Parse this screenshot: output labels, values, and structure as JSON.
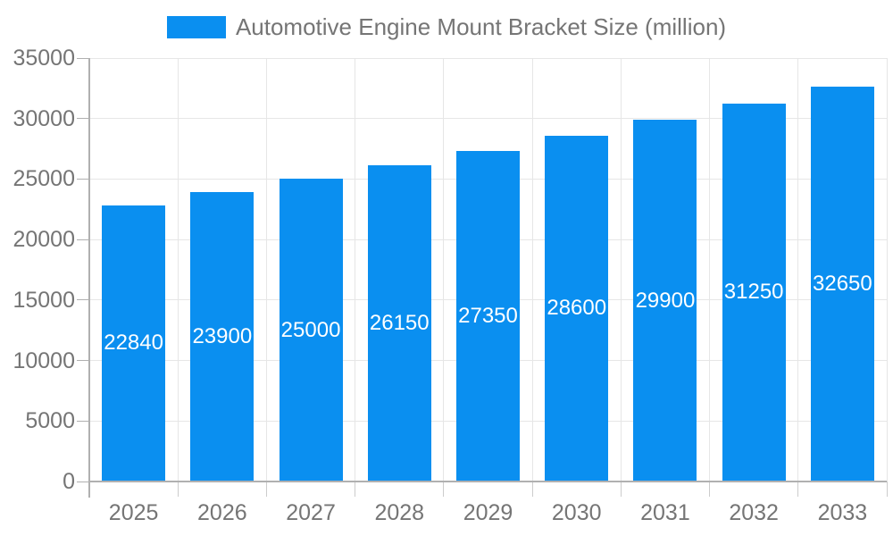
{
  "chart_data": {
    "type": "bar",
    "title": "Automotive Engine Mount Bracket Size (million)",
    "categories": [
      "2025",
      "2026",
      "2027",
      "2028",
      "2029",
      "2030",
      "2031",
      "2032",
      "2033"
    ],
    "values": [
      22840,
      23900,
      25000,
      26150,
      27350,
      28600,
      29900,
      31250,
      32650
    ],
    "xlabel": "",
    "ylabel": "",
    "ylim": [
      0,
      35000
    ],
    "yticks": [
      0,
      5000,
      10000,
      15000,
      20000,
      25000,
      30000,
      35000
    ],
    "legend_position": "top",
    "grid": "horizontal and vertical category separators",
    "value_labels": "white, centered inside bars"
  },
  "colors": {
    "bar": "#0a8ff0",
    "bar_label": "#ffffff",
    "axis_text": "#757575",
    "legend_text": "#757575",
    "gridline": "#e6e6e6",
    "minor_tick": "#cccccc",
    "axis_line": "#b0b0b0",
    "background": "#ffffff"
  }
}
